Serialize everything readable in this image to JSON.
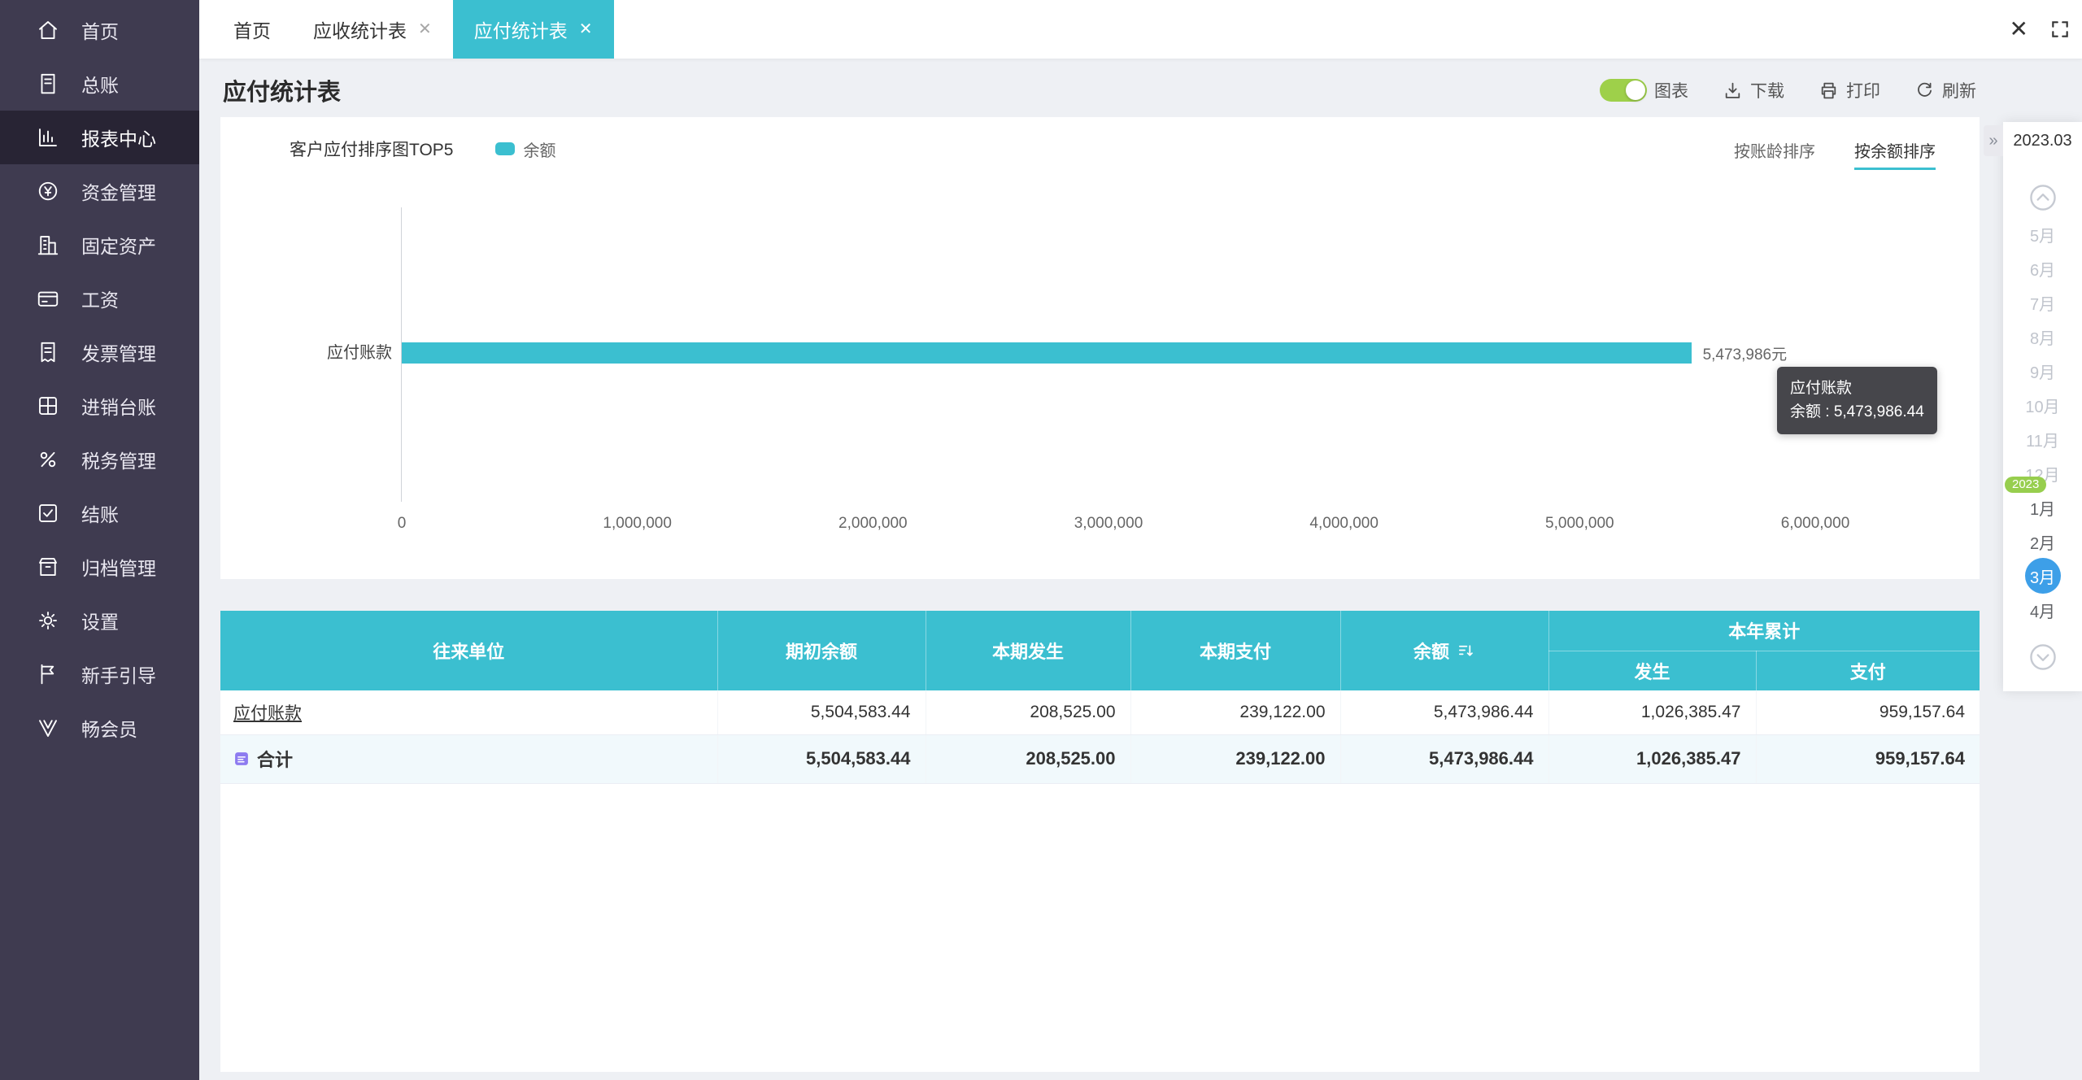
{
  "colors": {
    "accent": "#3bbfd0",
    "sidebar_bg": "#3f3b50",
    "sidebar_active": "#282434",
    "toggle_green": "#9ed04a",
    "badge_green": "#97ce4e",
    "selected_month_blue": "#3d9fe8",
    "bar": "#3bbfd0"
  },
  "sidebar": {
    "items": [
      {
        "label": "首页",
        "icon": "home-icon"
      },
      {
        "label": "总账",
        "icon": "ledger-icon"
      },
      {
        "label": "报表中心",
        "icon": "bar-chart-icon"
      },
      {
        "label": "资金管理",
        "icon": "money-icon"
      },
      {
        "label": "固定资产",
        "icon": "building-icon"
      },
      {
        "label": "工资",
        "icon": "card-icon"
      },
      {
        "label": "发票管理",
        "icon": "invoice-icon"
      },
      {
        "label": "进销台账",
        "icon": "grid-icon"
      },
      {
        "label": "税务管理",
        "icon": "percent-icon"
      },
      {
        "label": "结账",
        "icon": "check-square-icon"
      },
      {
        "label": "归档管理",
        "icon": "archive-box-icon"
      },
      {
        "label": "设置",
        "icon": "gear-icon"
      },
      {
        "label": "新手引导",
        "icon": "flag-icon"
      },
      {
        "label": "畅会员",
        "icon": "vip-icon"
      }
    ],
    "active_label": "报表中心"
  },
  "tabbar": {
    "tabs": [
      {
        "label": "首页"
      },
      {
        "label": "应收统计表",
        "close": "✕"
      },
      {
        "label": "应付统计表",
        "close": "✕",
        "active": true
      }
    ]
  },
  "window": {
    "close": "✕"
  },
  "page": {
    "title": "应付统计表"
  },
  "toolbar": {
    "chart_toggle": "图表",
    "download": "下载",
    "print": "打印",
    "refresh": "刷新"
  },
  "chart_panel": {
    "title": "客户应付排序图TOP5",
    "legend_label": "余额",
    "sort_age": "按账龄排序",
    "sort_balance": "按余额排序",
    "category_label": "应付账款",
    "bar_value_label": "5,473,986元",
    "tooltip": {
      "line1": "应付账款",
      "line2": "余额 : 5,473,986.44"
    }
  },
  "chart_data": {
    "type": "bar",
    "orientation": "horizontal",
    "title": "客户应付排序图TOP5",
    "categories": [
      "应付账款"
    ],
    "series": [
      {
        "name": "余额",
        "values": [
          5473986.44
        ]
      }
    ],
    "xlim": [
      0,
      6000000
    ],
    "x_ticks": [
      "0",
      "1,000,000",
      "2,000,000",
      "3,000,000",
      "4,000,000",
      "5,000,000",
      "6,000,000"
    ],
    "bar_color": "#3bbfd0",
    "legend_position": "top",
    "grid": false,
    "value_label": "5,473,986元"
  },
  "month_panel": {
    "collapse_glyph": "»",
    "current": "2023.03",
    "year_badge": "2023",
    "months": [
      "5月",
      "6月",
      "7月",
      "8月",
      "9月",
      "10月",
      "11月",
      "12月",
      "1月",
      "2月",
      "3月",
      "4月"
    ],
    "selected_month": "3月"
  },
  "table": {
    "headers": {
      "unit": "往来单位",
      "opening": "期初余额",
      "current": "本期发生",
      "paid": "本期支付",
      "balance": "余额",
      "ytd": "本年累计",
      "ytd_incurred": "发生",
      "ytd_paid": "支付"
    },
    "rows": [
      {
        "unit": "应付账款",
        "opening": "5,504,583.44",
        "current": "208,525.00",
        "paid": "239,122.00",
        "balance": "5,473,986.44",
        "ytd_incurred": "1,026,385.47",
        "ytd_paid": "959,157.64"
      }
    ],
    "total": {
      "label": "合计",
      "opening": "5,504,583.44",
      "current": "208,525.00",
      "paid": "239,122.00",
      "balance": "5,473,986.44",
      "ytd_incurred": "1,026,385.47",
      "ytd_paid": "959,157.64"
    }
  }
}
